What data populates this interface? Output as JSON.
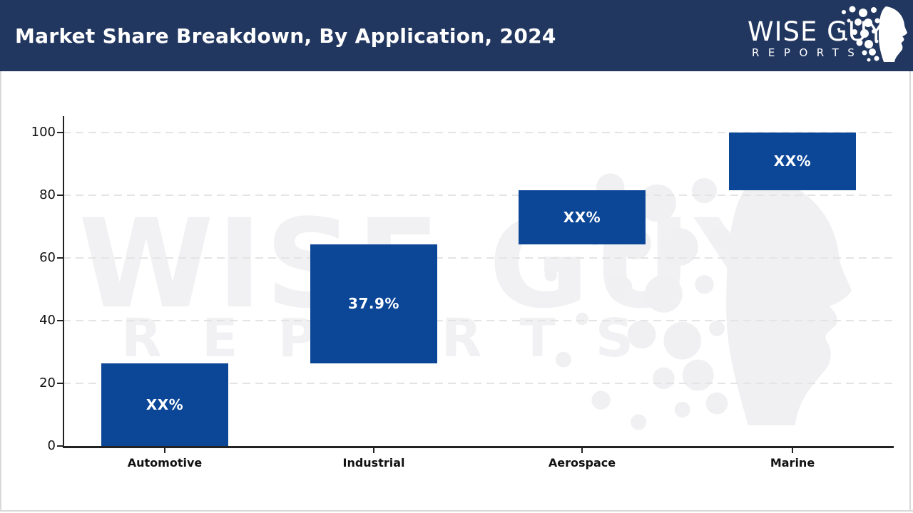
{
  "header": {
    "title": "Market Share Breakdown, By Application, 2024",
    "bg_color": "#223760",
    "logo": {
      "line1": "WISE GUY",
      "line2": "REPORTS"
    }
  },
  "watermark": {
    "line1": "WISE GUY",
    "line2": "REPORTS"
  },
  "chart_data": {
    "type": "bar",
    "subtype": "waterfall",
    "title": "Market Share Breakdown, By Application, 2024",
    "categories": [
      "Automotive",
      "Industrial",
      "Aerospace",
      "Marine"
    ],
    "segments": [
      {
        "category": "Automotive",
        "start": 0,
        "end": 26.4,
        "value": 26.4,
        "label": "XX%"
      },
      {
        "category": "Industrial",
        "start": 26.4,
        "end": 64.3,
        "value": 37.9,
        "label": "37.9%"
      },
      {
        "category": "Aerospace",
        "start": 64.3,
        "end": 81.6,
        "value": 17.3,
        "label": "XX%"
      },
      {
        "category": "Marine",
        "start": 81.6,
        "end": 100.0,
        "value": 18.4,
        "label": "XX%"
      }
    ],
    "yticks": [
      0,
      20,
      40,
      60,
      80,
      100
    ],
    "ylim": [
      0,
      100
    ],
    "xlabel": "",
    "ylabel": "",
    "grid": "horizontal-dashed",
    "legend": "none",
    "bar_color": "#0b4697",
    "bar_label_color": "#ffffff"
  }
}
